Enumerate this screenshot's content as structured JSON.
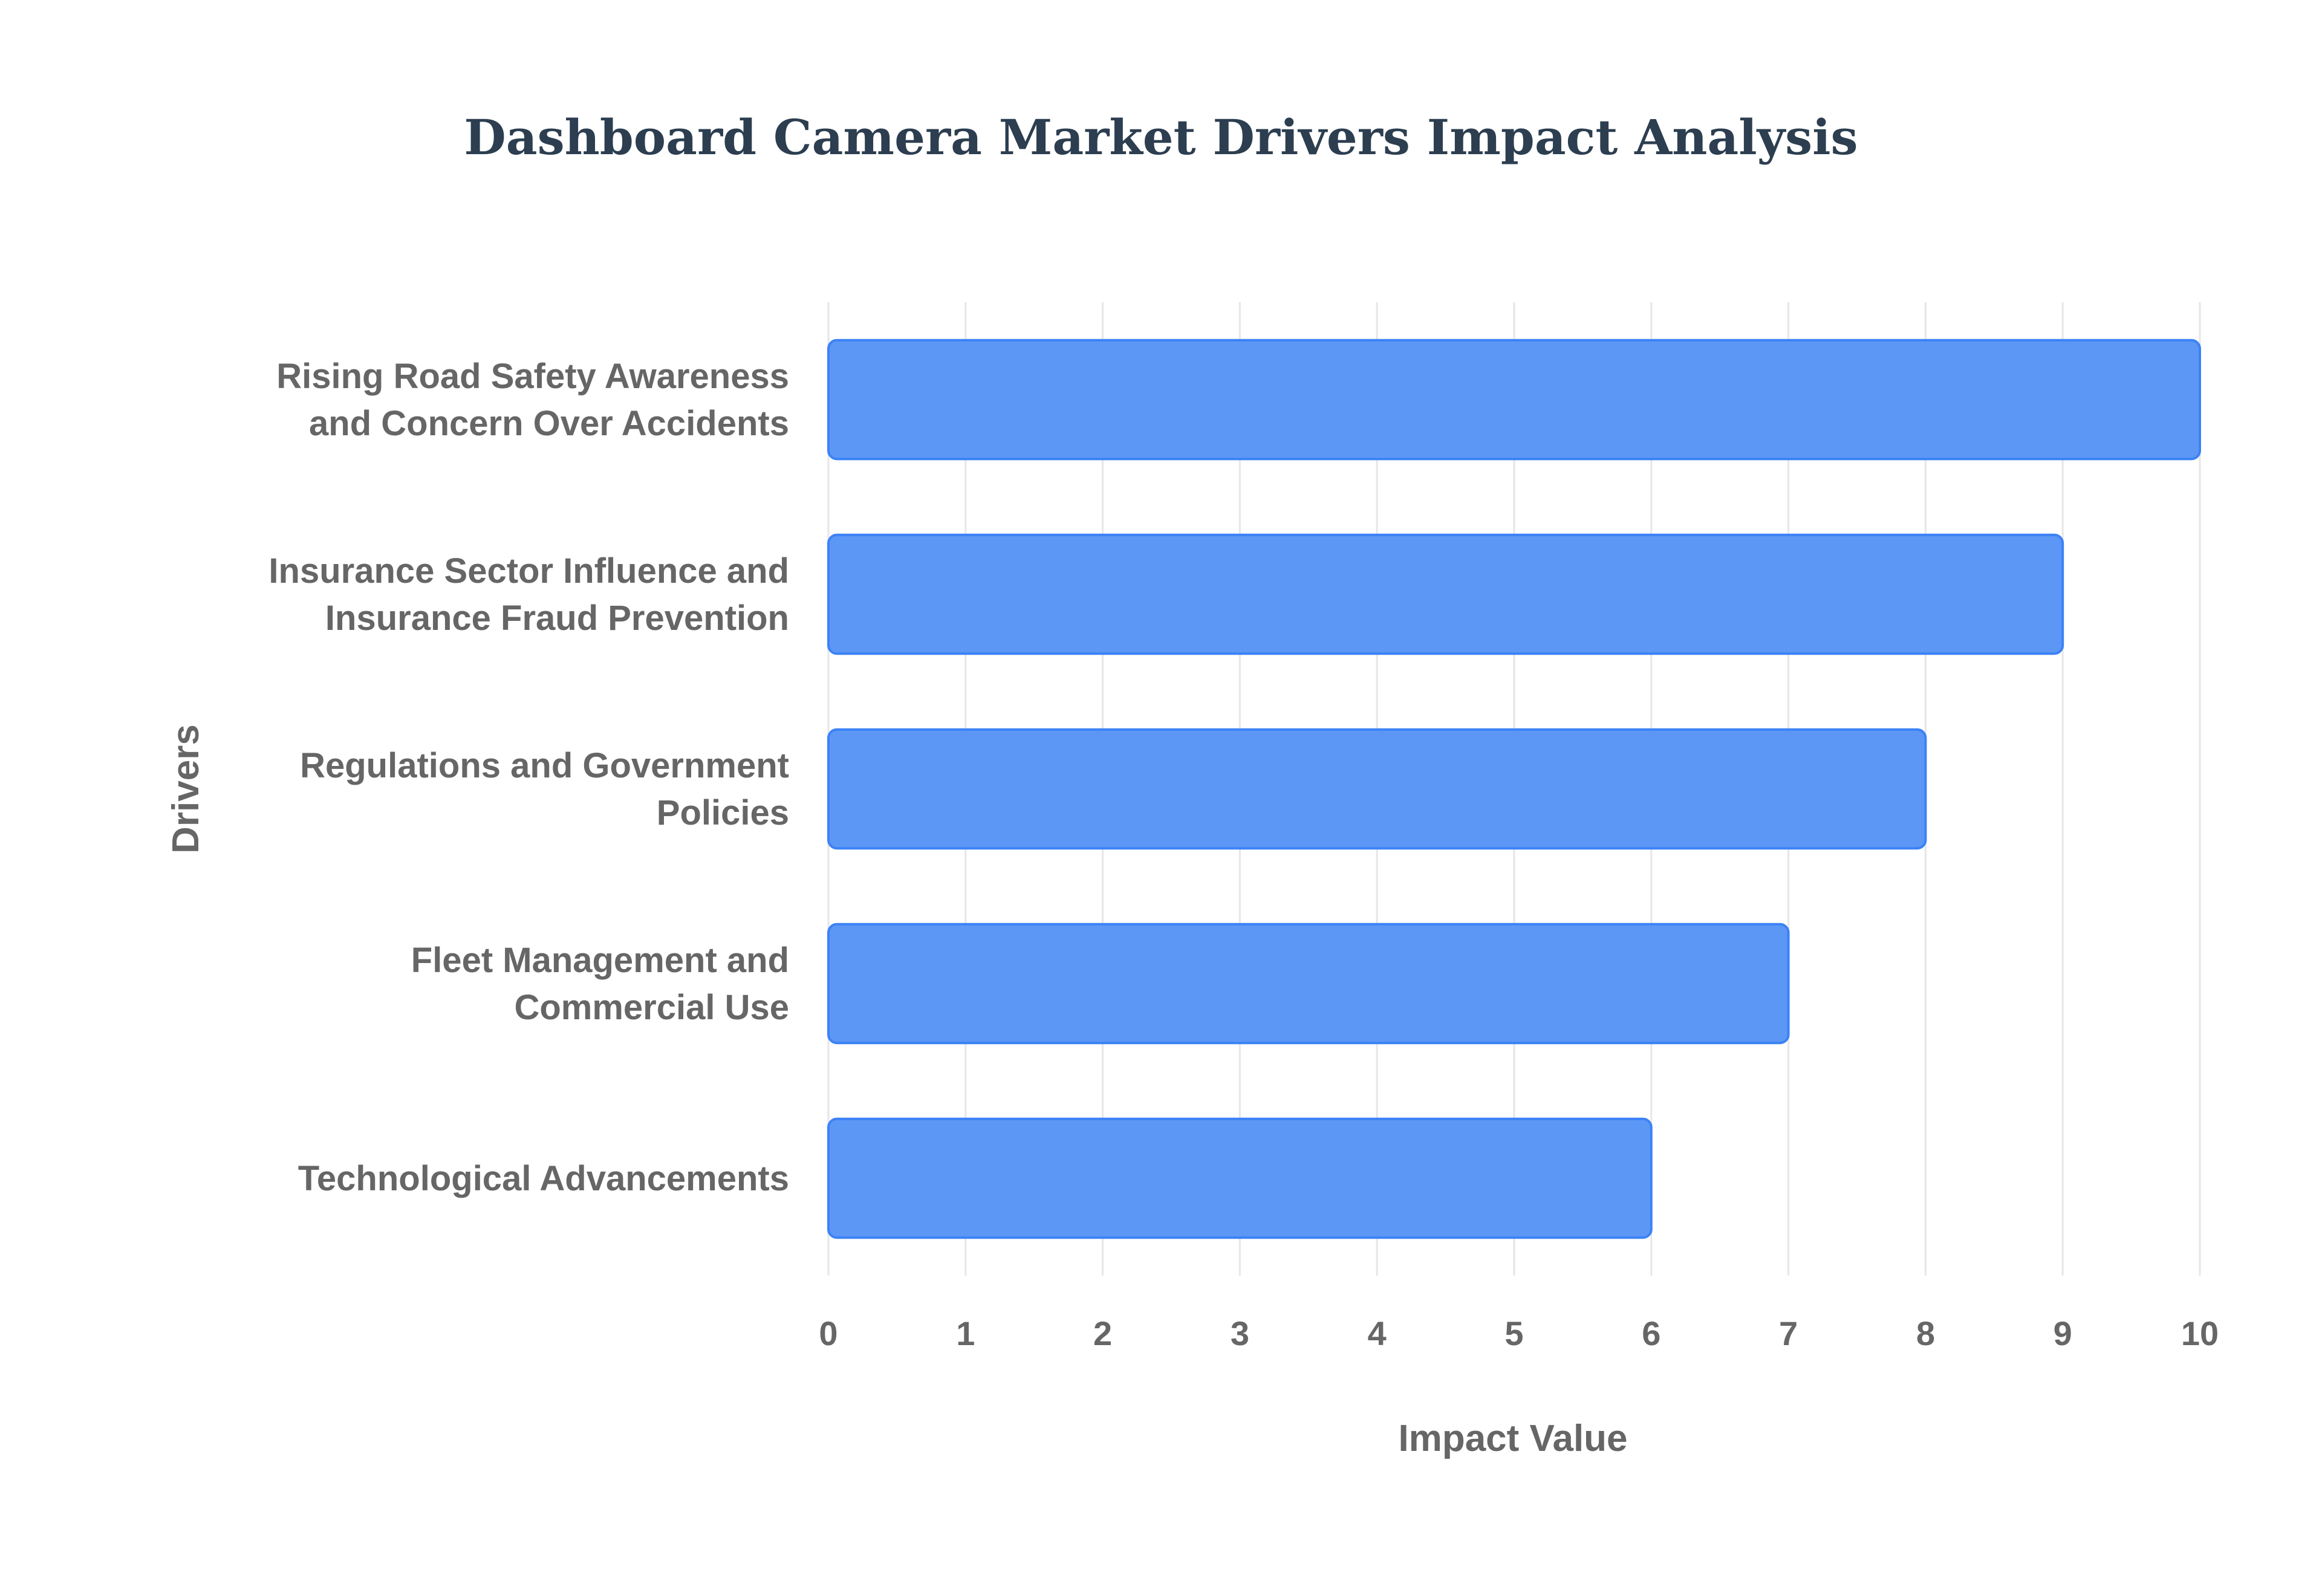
{
  "chart_data": {
    "type": "bar",
    "orientation": "horizontal",
    "title": "Dashboard Camera Market Drivers Impact Analysis",
    "xlabel": "Impact Value",
    "ylabel": "Drivers",
    "categories": [
      [
        "Rising Road Safety Awareness",
        "and Concern Over Accidents"
      ],
      [
        "Insurance Sector Influence and",
        "Insurance Fraud Prevention"
      ],
      [
        "Regulations and Government",
        "Policies"
      ],
      [
        "Fleet Management and",
        "Commercial Use"
      ],
      [
        "Technological Advancements"
      ]
    ],
    "values": [
      10,
      9,
      8,
      7,
      6
    ],
    "xlim": [
      0,
      10
    ],
    "xticks": [
      "0",
      "1",
      "2",
      "3",
      "4",
      "5",
      "6",
      "7",
      "8",
      "9",
      "10"
    ],
    "grid": true,
    "legend": "none",
    "colors": {
      "bar_fill": "#5d97f5",
      "bar_stroke": "#3b82f6",
      "grid": "#e6e6e6",
      "title": "#2c3e50",
      "label": "#666666"
    }
  }
}
